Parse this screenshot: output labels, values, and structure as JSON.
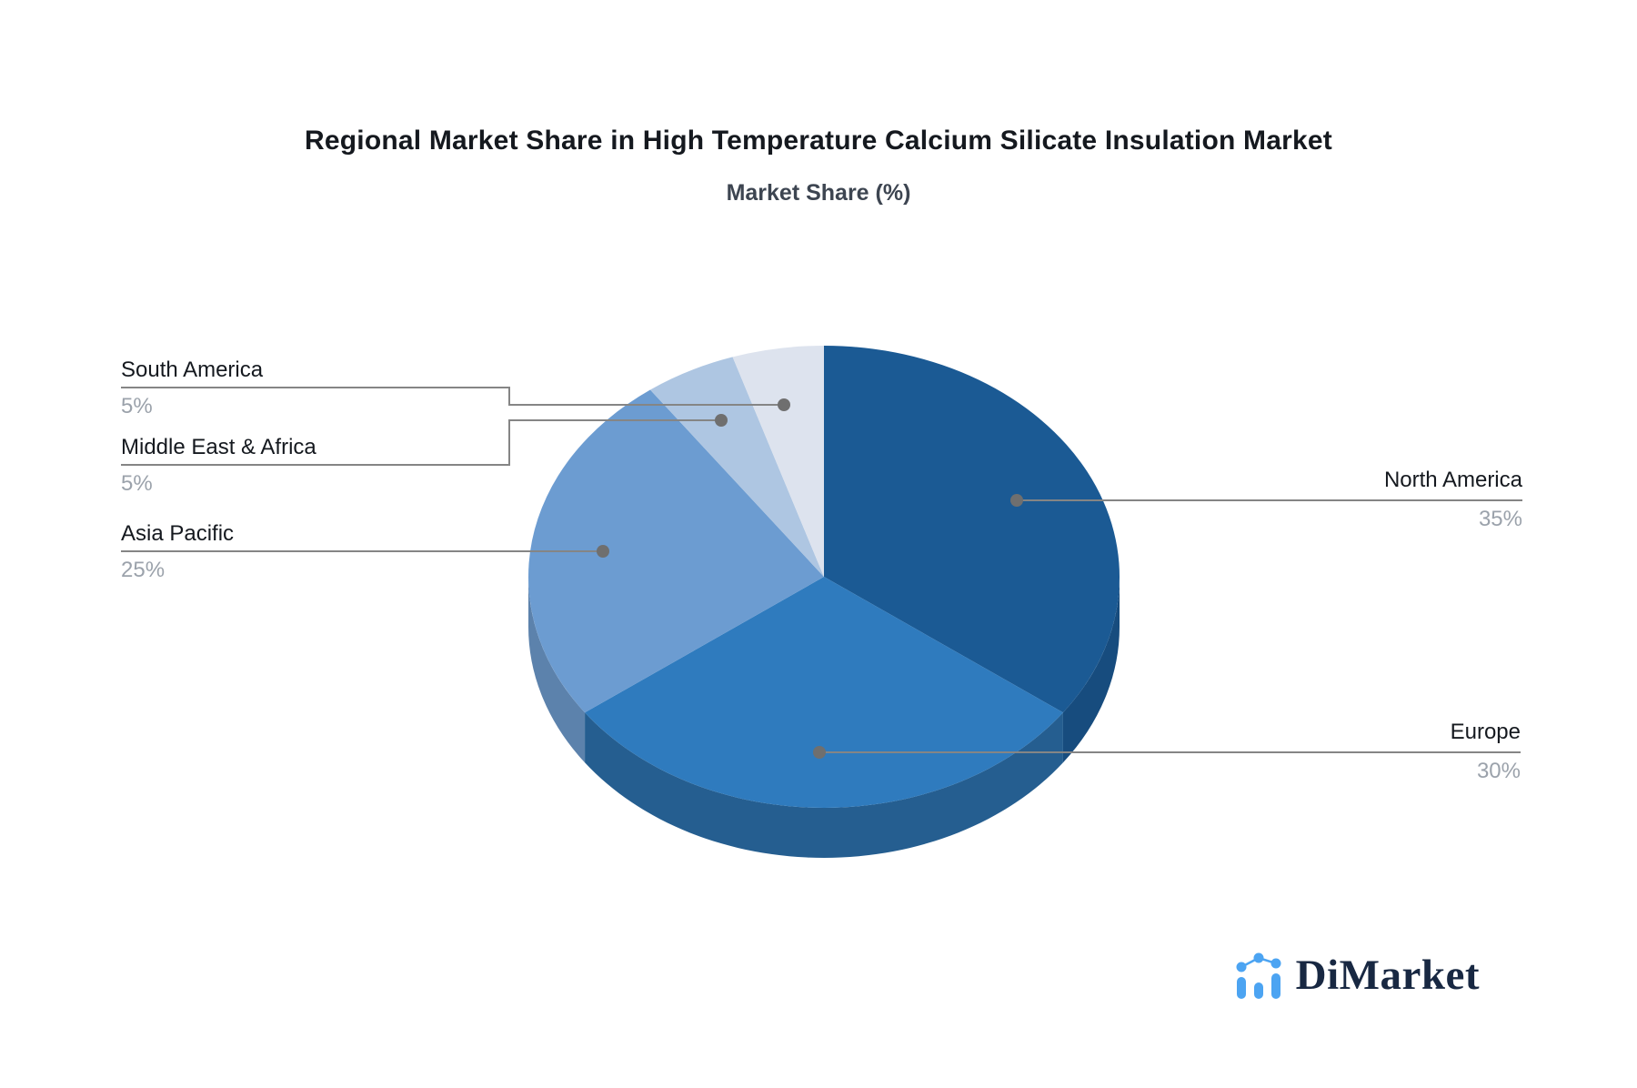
{
  "chart_data": {
    "type": "pie",
    "style": "3d",
    "title": "Regional Market Share in High Temperature Calcium Silicate Insulation Market",
    "subtitle": "Market Share (%)",
    "unit": "%",
    "legend_position": "none",
    "label_style": "callout leader lines; region name above line, percent below",
    "start_angle_deg": 0,
    "direction": "clockwise",
    "slices": [
      {
        "label": "North America",
        "value": 35,
        "pct_label": "35%",
        "color": "#1B5A94",
        "side_color": "#174C7E"
      },
      {
        "label": "Europe",
        "value": 30,
        "pct_label": "30%",
        "color": "#2F7BBE",
        "side_color": "#255E90"
      },
      {
        "label": "Asia Pacific",
        "value": 25,
        "pct_label": "25%",
        "color": "#6C9CD1",
        "side_color": "#5C82AC"
      },
      {
        "label": "Middle East & Africa",
        "value": 5,
        "pct_label": "5%",
        "color": "#AEC6E2",
        "side_color": "#8FA9C4"
      },
      {
        "label": "South America",
        "value": 5,
        "pct_label": "5%",
        "color": "#DDE3EE",
        "side_color": "#B6C2D2"
      }
    ],
    "callout_colors": {
      "line": "#858585",
      "dot": "#6f6f6f",
      "name_text": "#15191f",
      "pct_text": "#9ba2ab"
    }
  },
  "branding": {
    "logo_text": "DiMarket"
  }
}
